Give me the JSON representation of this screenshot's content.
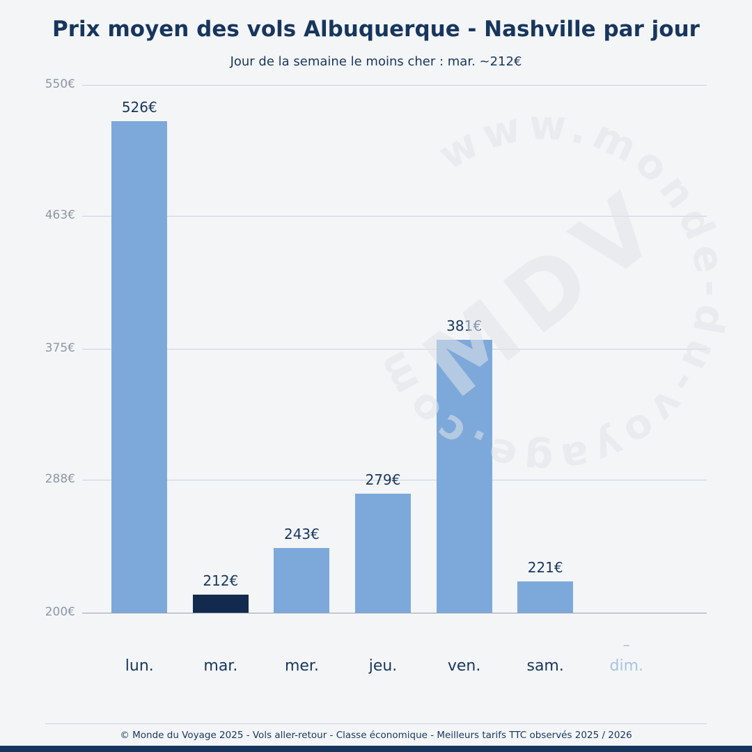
{
  "title": "Prix moyen des vols Albuquerque - Nashville par jour",
  "subtitle": "Jour de la semaine le moins cher : mar. ~212€",
  "watermark": {
    "circle_text": "www.monde-du-voyage.com",
    "center_text": "MDV"
  },
  "footer": {
    "text": "© Monde du Voyage 2025 - Vols aller-retour - Classe économique - Meilleurs tarifs TTC observés 2025 / 2026"
  },
  "chart_data": {
    "type": "bar",
    "title": "Prix moyen des vols Albuquerque - Nashville par jour",
    "subtitle": "Jour de la semaine le moins cher : mar. ~212€",
    "categories": [
      "lun.",
      "mar.",
      "mer.",
      "jeu.",
      "ven.",
      "sam.",
      "dim."
    ],
    "values": [
      526,
      212,
      243,
      279,
      381,
      221,
      null
    ],
    "value_labels": [
      "526€",
      "212€",
      "243€",
      "279€",
      "381€",
      "221€",
      null
    ],
    "no_data_marker": "–",
    "no_data_index": 6,
    "highlight_index": 1,
    "ylim": [
      200,
      550
    ],
    "yticks": [
      550,
      463,
      375,
      288,
      200
    ],
    "ytick_labels": [
      "550€",
      "463€",
      "375€",
      "288€",
      "200€"
    ],
    "grid": true,
    "legend": "none",
    "colors": {
      "bar": "#7da9da",
      "highlight_bar": "#132a4f",
      "gridline": "#c9d1de",
      "axis_tick": "#8d96a6",
      "value_label": "#17365d",
      "day_label": "#17365d",
      "no_data_label": "#a7c4e4",
      "accent_navy": "#16355f",
      "background": "#f4f5f7"
    }
  }
}
